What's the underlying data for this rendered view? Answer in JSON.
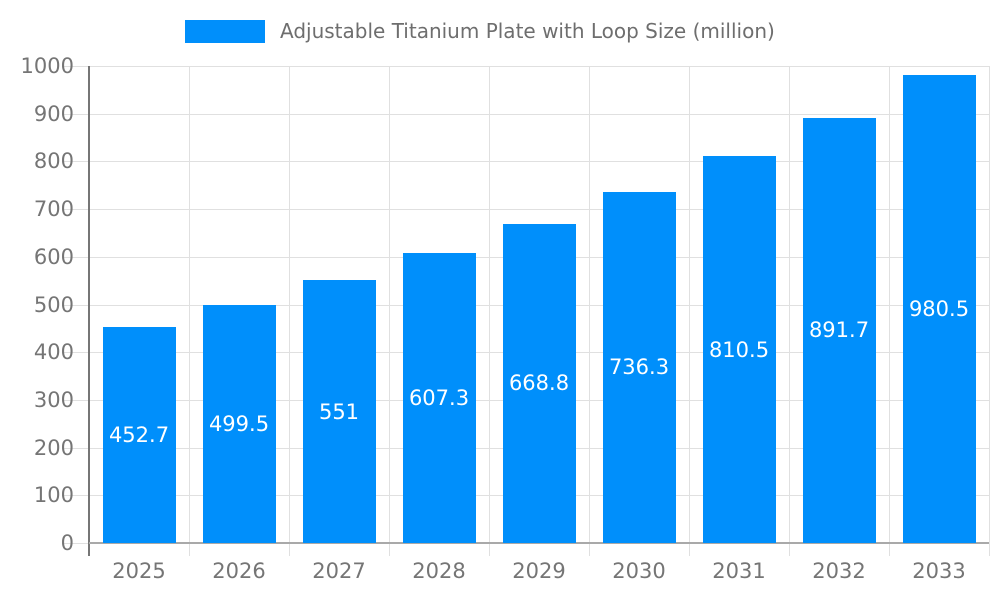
{
  "chart_data": {
    "type": "bar",
    "title": "Adjustable Titanium Plate with Loop Size (million)",
    "categories": [
      "2025",
      "2026",
      "2027",
      "2028",
      "2029",
      "2030",
      "2031",
      "2032",
      "2033"
    ],
    "values": [
      452.7,
      499.5,
      551,
      607.3,
      668.8,
      736.3,
      810.5,
      891.7,
      980.5
    ],
    "xlabel": "",
    "ylabel": "",
    "ylim": [
      0,
      1000
    ],
    "ytick_step": 100,
    "grid": true,
    "legend_position": "top",
    "colors": {
      "bar": "#008FFB",
      "bar_value_label": "#FFFFFF",
      "axis_text": "#757575",
      "legend_text": "#6E6E6E",
      "gridline": "#E0E0E0",
      "y_axis_line": "#767676",
      "x_axis_line": "#A9A9A9"
    }
  }
}
